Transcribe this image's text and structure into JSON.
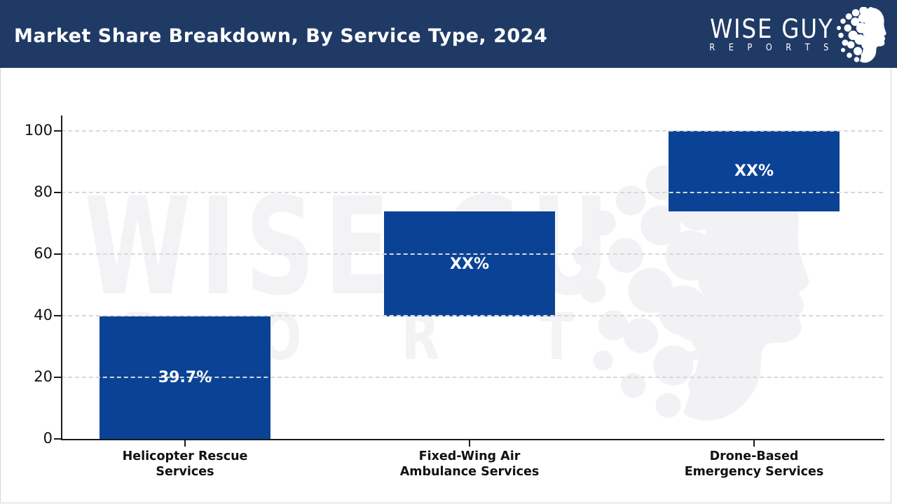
{
  "header": {
    "title": "Market Share Breakdown, By Service Type, 2024",
    "logo_line1": "WISE GUY",
    "logo_line2": "R E P O R T S"
  },
  "watermark": {
    "line1": "WISE GU",
    "line2": "P O R T S"
  },
  "colors": {
    "header_bg": "#203a66",
    "bar_blue": "#0a4396",
    "grid_gray": "#d8d8d8",
    "axis_dark": "#1a1a1a",
    "watermark_gray": "#f3f3f5"
  },
  "chart_data": {
    "type": "bar",
    "variant": "floating-waterfall",
    "title": "Market Share Breakdown, By Service Type, 2024",
    "categories": [
      "Helicopter Rescue\nServices",
      "Fixed-Wing Air\nAmbulance Services",
      "Drone-Based\nEmergency Services"
    ],
    "segments": [
      {
        "label": "39.7%",
        "from": 0,
        "to": 39.7
      },
      {
        "label": "XX%",
        "from": 39.7,
        "to": 73.8
      },
      {
        "label": "XX%",
        "from": 73.8,
        "to": 100
      }
    ],
    "ylim": [
      0,
      100
    ],
    "yticks": [
      0,
      20,
      40,
      60,
      80,
      100
    ],
    "grid": "dashed-horizontal",
    "grid_above_bars": true,
    "legend": "none",
    "bar_color": "#0a4396",
    "value_label_color": "#ffffff"
  }
}
